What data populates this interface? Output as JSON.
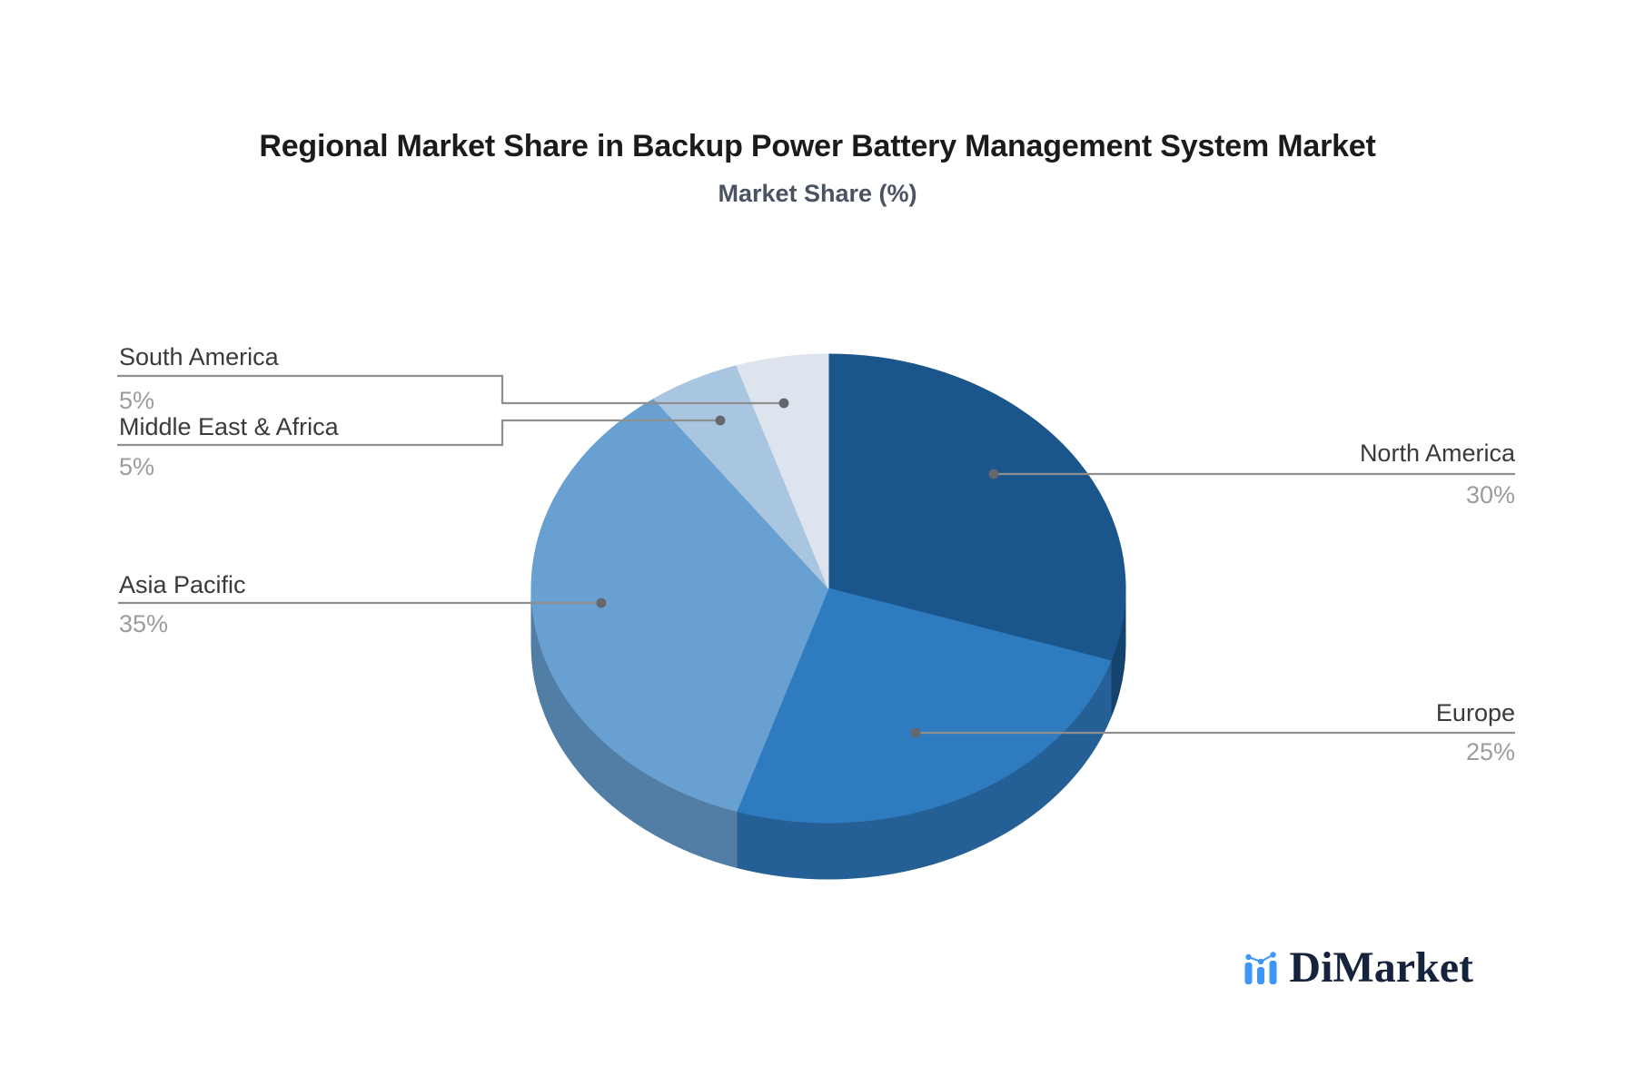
{
  "header": {
    "title": "Regional Market Share in Backup Power Battery Management System Market",
    "subtitle": "Market Share (%)"
  },
  "branding": {
    "logo_text": "DiMarket",
    "logo_icon": "bar-line-chart-icon",
    "logo_icon_color": "#3E96F5",
    "logo_text_color": "#15233c"
  },
  "chart_data": {
    "type": "pie",
    "style": "3d-pie",
    "title": "Regional Market Share in Backup Power Battery Management System Market",
    "subtitle": "Market Share (%)",
    "unit": "%",
    "start_angle_deg": 0,
    "direction": "clockwise",
    "legend_position": "callout-labels",
    "segments": [
      {
        "label": "North America",
        "value": 30,
        "pct": "30%",
        "color": "#1A568C",
        "side_color": "#14436D"
      },
      {
        "label": "Europe",
        "value": 25,
        "pct": "25%",
        "color": "#2E7BC0",
        "side_color": "#246096"
      },
      {
        "label": "Asia Pacific",
        "value": 35,
        "pct": "35%",
        "color": "#69A0D2",
        "side_color": "#527DA4"
      },
      {
        "label": "Middle East & Africa",
        "value": 5,
        "pct": "5%",
        "color": "#A9C6E1",
        "side_color": "#849BB0"
      },
      {
        "label": "South America",
        "value": 5,
        "pct": "5%",
        "color": "#DEE4ED",
        "side_color": "#ADB2B9"
      }
    ],
    "leader_line_color": "#8f8f8f",
    "leader_dot_color": "#64676b",
    "label_text_color": "#3a3a3a",
    "pct_text_color": "#9c9c9c"
  }
}
